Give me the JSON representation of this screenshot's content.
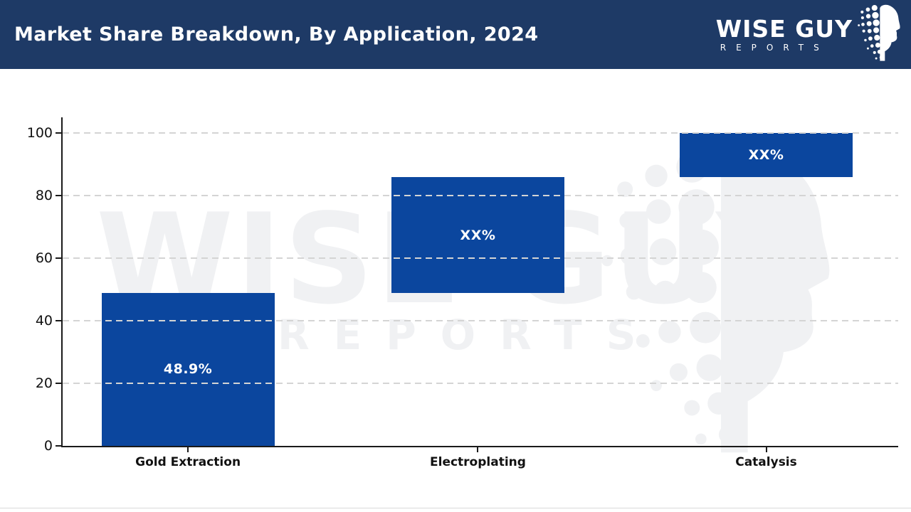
{
  "header": {
    "title": "Market Share Breakdown, By Application, 2024",
    "logo": {
      "line1": "WISE GUY",
      "line2": "REPORTS"
    }
  },
  "watermark": {
    "line1": "WISE GUY",
    "line2": "REPORTS"
  },
  "chart_data": {
    "type": "bar",
    "subtype": "stacked-waterfall",
    "title": "Market Share Breakdown, By Application, 2024",
    "categories": [
      "Gold Extraction",
      "Electroplating",
      "Catalysis"
    ],
    "segments": [
      {
        "category": "Gold Extraction",
        "value_label": "48.9%",
        "start": 0,
        "end": 48.9
      },
      {
        "category": "Electroplating",
        "value_label": "XX%",
        "start": 48.9,
        "end": 85.8
      },
      {
        "category": "Catalysis",
        "value_label": "XX%",
        "start": 85.8,
        "end": 100
      }
    ],
    "y_ticks": [
      0,
      20,
      40,
      60,
      80,
      100
    ],
    "ylim": [
      0,
      105
    ],
    "grid": "dashed-horizontal",
    "legend": "none",
    "bar_color": "#0b469e",
    "colors": {
      "header_bg": "#1e3a66",
      "bar": "#0b469e",
      "grid": "#d4d4d4",
      "axis": "#1a1a1a",
      "watermark": "#f0f1f3",
      "title_text": "#ffffff"
    }
  }
}
